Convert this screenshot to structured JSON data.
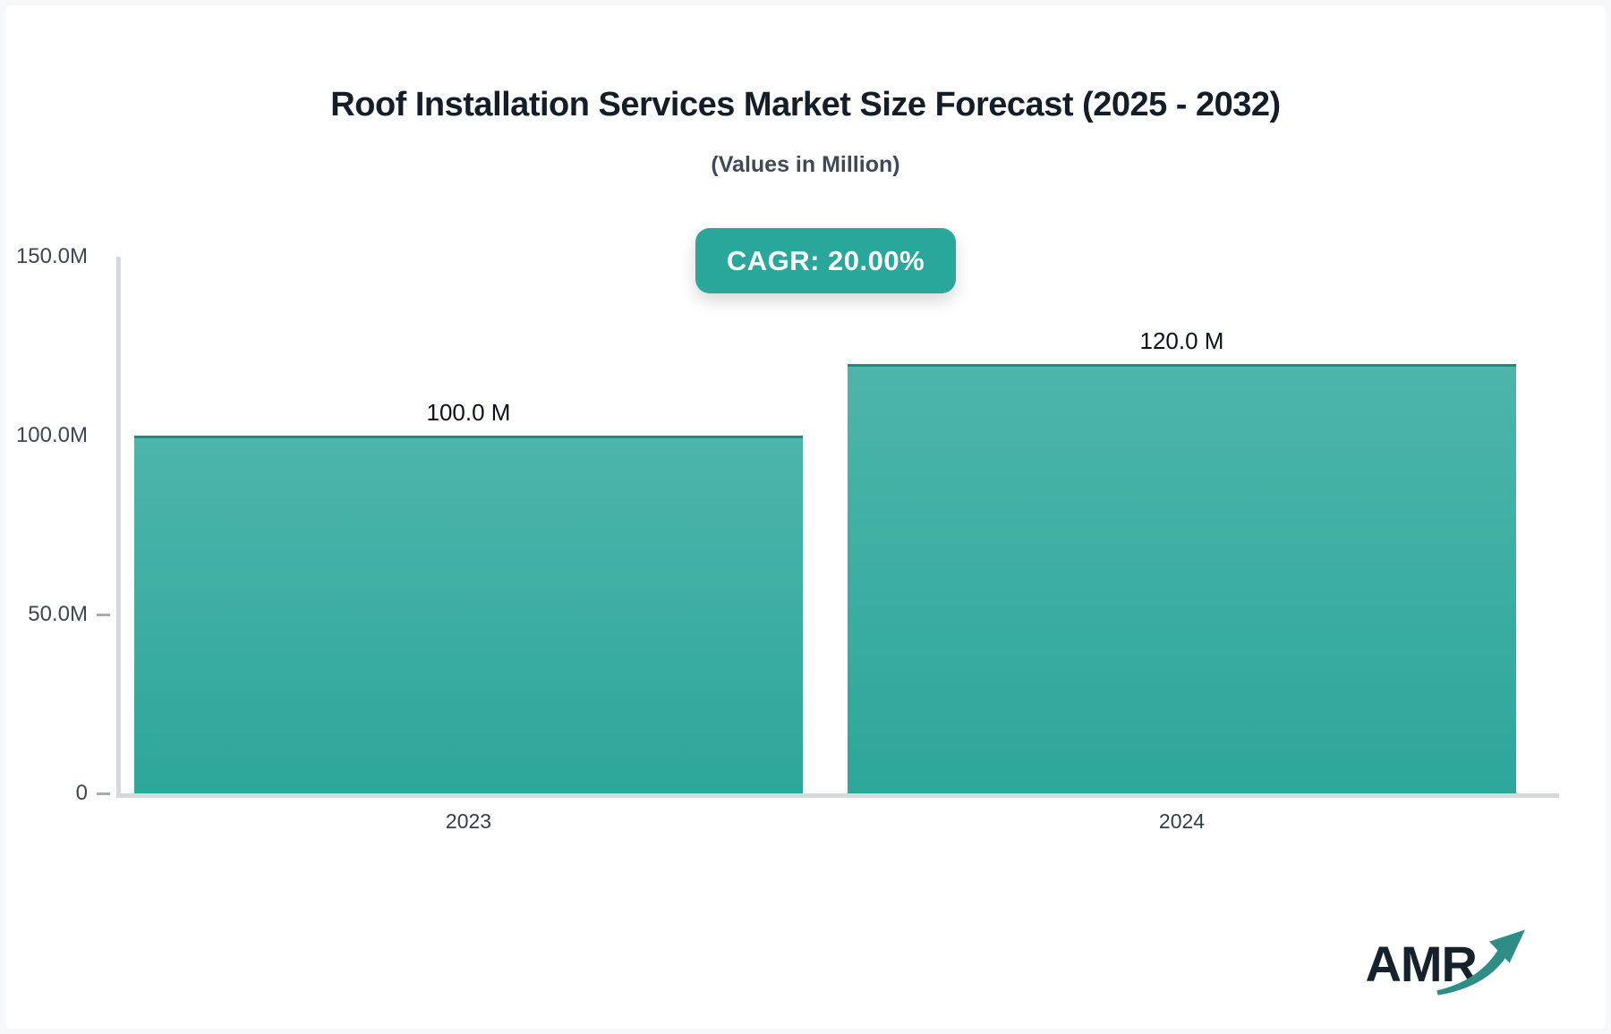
{
  "title": "Roof Installation Services Market Size Forecast (2025 - 2032)",
  "subtitle": "(Values in Million)",
  "badge": {
    "label": "CAGR: 20.00%"
  },
  "chart_data": {
    "type": "bar",
    "title": "Roof Installation Services Market Size Forecast (2025 - 2032)",
    "subtitle": "(Values in Million)",
    "unit": "Million",
    "categories": [
      "2023",
      "2024"
    ],
    "values": [
      100.0,
      120.0
    ],
    "value_labels": [
      "100.0 M",
      "120.0 M"
    ],
    "cagr_label": "CAGR: 20.00%",
    "ylim": [
      0,
      150
    ],
    "yticks": [
      {
        "label": "150.0M",
        "value": 150,
        "dash": false
      },
      {
        "label": "100.0M",
        "value": 100,
        "dash": false
      },
      {
        "label": "50.0M",
        "value": 50,
        "dash": true
      },
      {
        "label": "0",
        "value": 0,
        "dash": true
      }
    ],
    "grid": false,
    "legend": false
  },
  "logo": {
    "text": "AMR"
  },
  "colors": {
    "accent_teal": "#2aa79b",
    "bar_gradient_top": "#4db5a9",
    "bar_gradient_bottom": "#2ca79a",
    "bar_top_border": "#23897f",
    "axis_line": "#d6d8de",
    "title_text": "#141e29",
    "tick_label_text": "#3d4653",
    "logo_text": "#15212b",
    "logo_arrow": "#2e8d85"
  }
}
